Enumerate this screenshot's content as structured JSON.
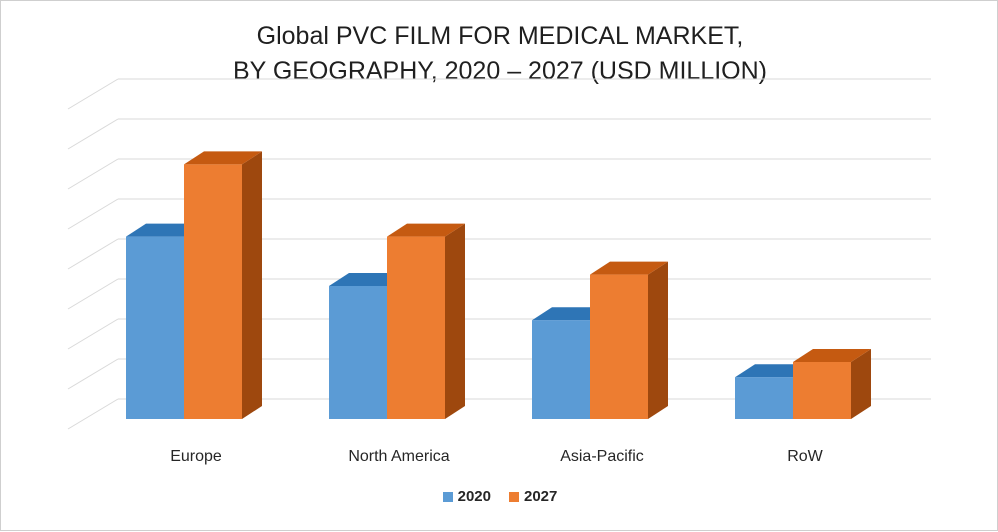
{
  "chart_data": {
    "type": "bar",
    "title_lines": [
      "Global PVC FILM FOR MEDICAL MARKET,",
      "BY GEOGRAPHY, 2020 – 2027 (USD MILLION)"
    ],
    "categories": [
      "Europe",
      "North America",
      "Asia-Pacific",
      "RoW"
    ],
    "series": [
      {
        "name": "2020",
        "values": [
          4.8,
          3.5,
          2.6,
          1.1
        ],
        "color": "#5B9BD5",
        "side_color": "#2E75B6",
        "top_color": "#2E75B6"
      },
      {
        "name": "2027",
        "values": [
          6.7,
          4.8,
          3.8,
          1.5
        ],
        "color": "#ED7D31",
        "side_color": "#9E480E",
        "top_color": "#C55A11"
      }
    ],
    "ylim": [
      0,
      8
    ],
    "grid": true,
    "legend_position": "bottom",
    "xlabel": "",
    "ylabel": ""
  }
}
